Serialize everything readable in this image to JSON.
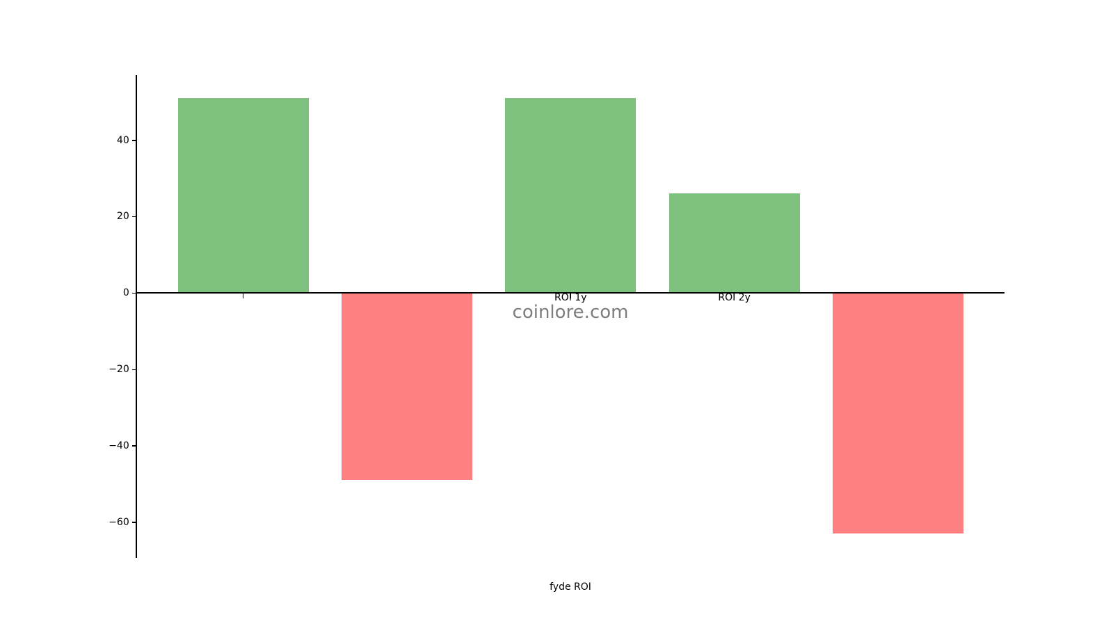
{
  "watermark": {
    "text": "coinlore.com",
    "color": "#7d7d7d"
  },
  "chart_data": {
    "type": "bar",
    "categories": [
      "",
      "",
      "ROI 1y",
      "ROI 2y",
      ""
    ],
    "values": [
      51,
      -49,
      51,
      26,
      -63
    ],
    "title": "",
    "xlabel": "fyde ROI",
    "ylabel": "",
    "ylim": [
      -69.5,
      57
    ],
    "yticks": [
      40,
      20,
      0,
      -20,
      -40,
      -60
    ],
    "ytick_labels": [
      "40",
      "20",
      "0",
      "−20",
      "−40",
      "−60"
    ],
    "visible_xtick_indexes": [
      0,
      2,
      3
    ],
    "positive_color": "#7ec07e",
    "negative_color": "#ff8080",
    "axis_color": "#000000",
    "text_color": "#000000",
    "grid": false,
    "legend": "none"
  }
}
